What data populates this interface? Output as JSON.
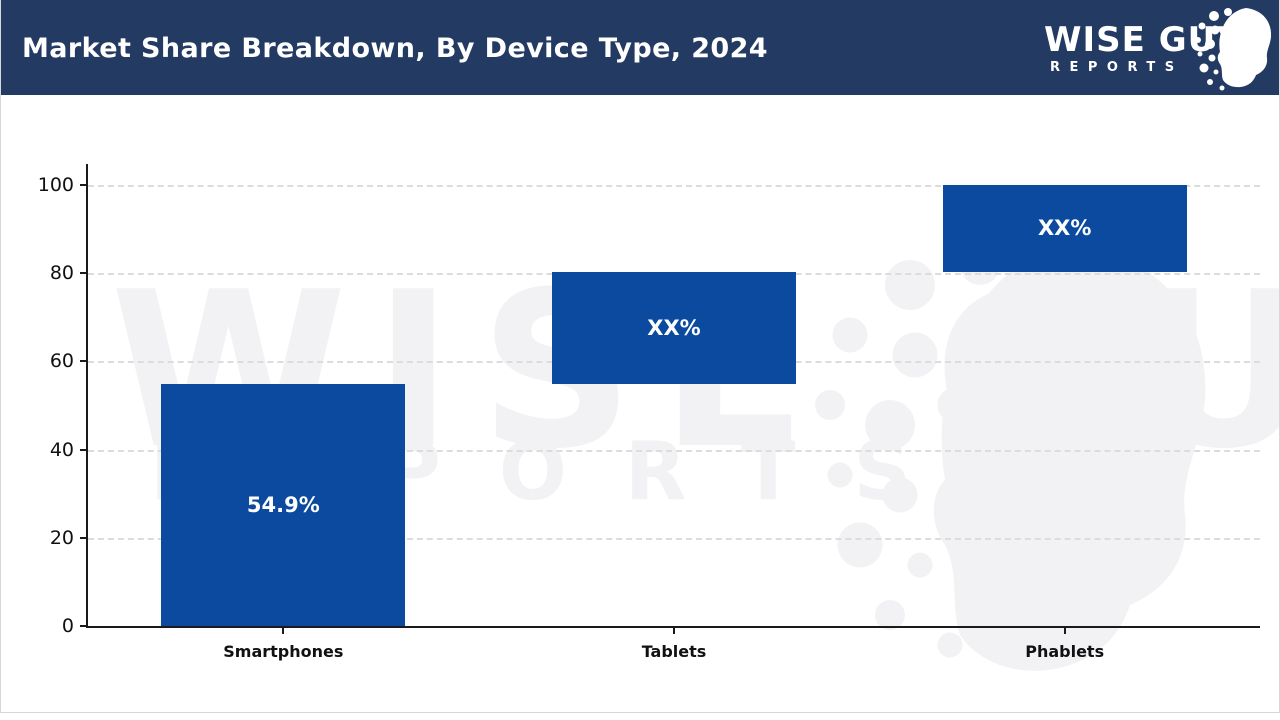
{
  "header": {
    "title": "Market Share Breakdown, By Device Type, 2024",
    "bg_color": "#233a63",
    "logo": {
      "line1": "WISE GUY",
      "line2": "REPORTS"
    }
  },
  "watermark": {
    "line1": "WISE GUY",
    "line2": "REPORTS"
  },
  "chart_data": {
    "type": "bar",
    "subtype": "floating-waterfall",
    "title": "Market Share Breakdown, By Device Type, 2024",
    "categories": [
      "Smartphones",
      "Tablets",
      "Phablets"
    ],
    "segments": [
      {
        "category": "Smartphones",
        "from": 0,
        "to": 54.9,
        "label": "54.9%"
      },
      {
        "category": "Tablets",
        "from": 54.9,
        "to": 80.3,
        "label": "XX%"
      },
      {
        "category": "Phablets",
        "from": 80.3,
        "to": 100,
        "label": "XX%"
      }
    ],
    "xlabel": "",
    "ylabel": "",
    "ylim": [
      0,
      100
    ],
    "yticks": [
      0,
      20,
      40,
      60,
      80,
      100
    ],
    "grid": "horizontal-dashed",
    "legend": "none",
    "bar_color": "#0b4a9f",
    "bar_label_color": "#ffffff",
    "axis_color": "#1a1a1a",
    "gridline_color": "#dcdcdc"
  }
}
